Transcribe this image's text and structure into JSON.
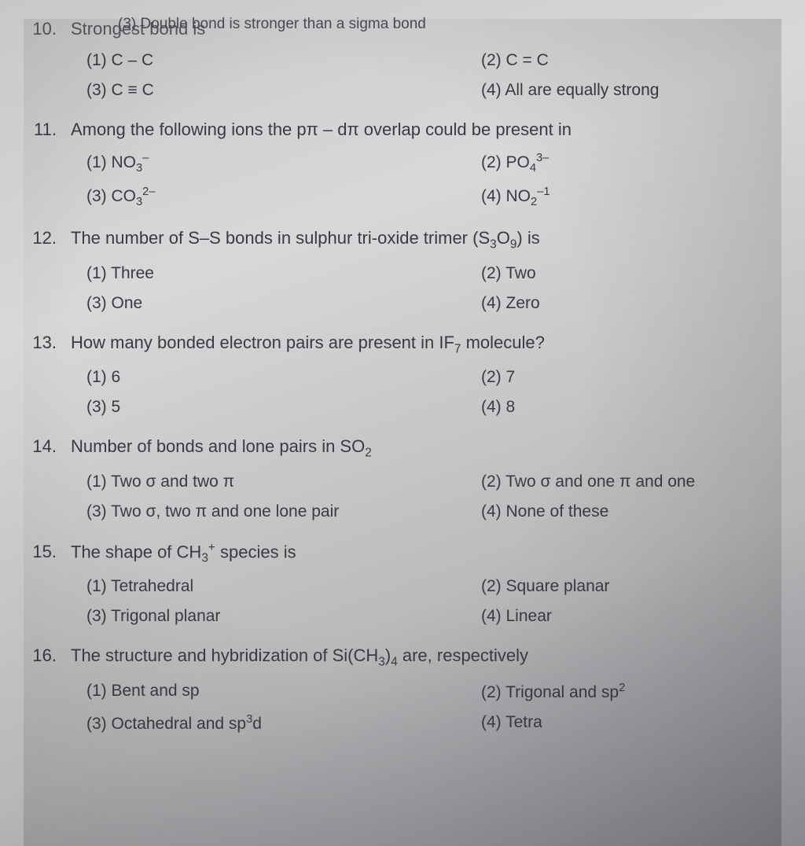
{
  "partial": {
    "opt3_label": "(3) Double bond is stronger than a sigma bond"
  },
  "q10": {
    "num": "10.",
    "text": "Strongest bond is",
    "opt1": "(1)  C – C",
    "opt2": "(2)  C = C",
    "opt3": "(3)  C ≡ C",
    "opt4": "(4)  All are equally strong"
  },
  "q11": {
    "num": "11.",
    "text": "Among the following ions the pπ – dπ overlap could be present in",
    "opt1": "(1)  NO",
    "opt1_sub": "3",
    "opt1_sup": "–",
    "opt2": "(2)  PO",
    "opt2_sub": "4",
    "opt2_sup": "3–",
    "opt3": "(3)  CO",
    "opt3_sub": "3",
    "opt3_sup": "2–",
    "opt4": "(4)  NO",
    "opt4_sub": "2",
    "opt4_sup": "–1"
  },
  "q12": {
    "num": "12.",
    "text_a": "The number of S–S bonds in sulphur tri-oxide trimer (S",
    "text_sub": "3",
    "text_b": "O",
    "text_sub2": "9",
    "text_c": ") is",
    "opt1": "(1)  Three",
    "opt2": "(2)  Two",
    "opt3": "(3)  One",
    "opt4": "(4)  Zero"
  },
  "q13": {
    "num": "13.",
    "text_a": "How many bonded electron pairs are present in IF",
    "text_sub": "7",
    "text_b": " molecule?",
    "opt1": "(1)  6",
    "opt2": "(2)  7",
    "opt3": "(3)  5",
    "opt4": "(4)  8"
  },
  "q14": {
    "num": "14.",
    "text_a": "Number of bonds and lone pairs in SO",
    "text_sub": "2",
    "opt1": "(1)  Two σ and two π",
    "opt2": "(2)  Two σ and one π and one",
    "opt3": "(3)  Two σ, two π and one lone pair",
    "opt4": "(4)  None of these"
  },
  "q15": {
    "num": "15.",
    "text_a": "The shape of CH",
    "text_sub": "3",
    "text_sup": "+",
    "text_b": " species is",
    "opt1": "(1)  Tetrahedral",
    "opt2": "(2)  Square planar",
    "opt3": "(3)  Trigonal planar",
    "opt4": "(4)  Linear"
  },
  "q16": {
    "num": "16.",
    "text_a": "The structure and hybridization of Si(CH",
    "text_sub": "3",
    "text_b": ")",
    "text_sub2": "4",
    "text_c": " are, respectively",
    "opt1": "(1)  Bent and sp",
    "opt2_a": "(2)  Trigonal and sp",
    "opt2_sup": "2",
    "opt3_a": "(3)  Octahedral and sp",
    "opt3_sup": "3",
    "opt3_b": "d",
    "opt4_a": "(4)  Tetra"
  }
}
